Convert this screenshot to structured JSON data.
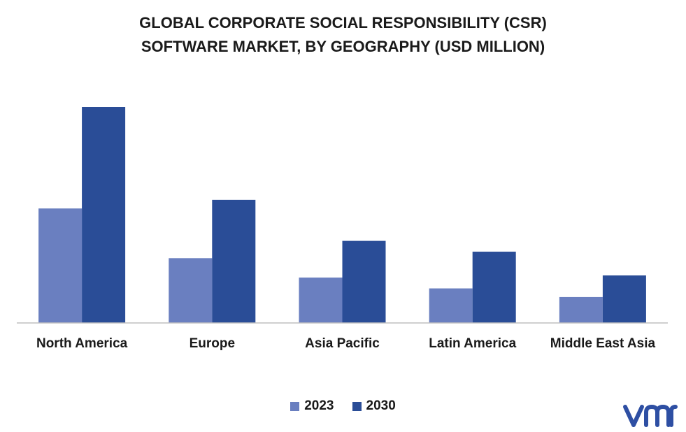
{
  "title_line1": "GLOBAL CORPORATE SOCIAL RESPONSIBILITY (CSR)",
  "title_line2": "SOFTWARE MARKET, BY GEOGRAPHY (USD MILLION)",
  "logo": {
    "icon": "vmr-logo-icon",
    "text": "vmr",
    "color": "#2e4fa3"
  },
  "colors": {
    "2023": "#6a7fc0",
    "2030": "#2a4d97",
    "axis": "#bfbfbf",
    "text": "#1a1a1a"
  },
  "chart_data": {
    "type": "bar",
    "title": "GLOBAL CORPORATE SOCIAL RESPONSIBILITY (CSR) SOFTWARE MARKET, BY GEOGRAPHY (USD MILLION)",
    "categories": [
      "North America",
      "Europe",
      "Asia Pacific",
      "Latin America",
      "Middle East Asia"
    ],
    "series": [
      {
        "name": "2023",
        "values": [
          5.3,
          3.0,
          2.1,
          1.6,
          1.2
        ]
      },
      {
        "name": "2030",
        "values": [
          10.0,
          5.7,
          3.8,
          3.3,
          2.2
        ]
      }
    ],
    "ylim": [
      0,
      10
    ],
    "grid": false,
    "legend_position": "bottom"
  }
}
